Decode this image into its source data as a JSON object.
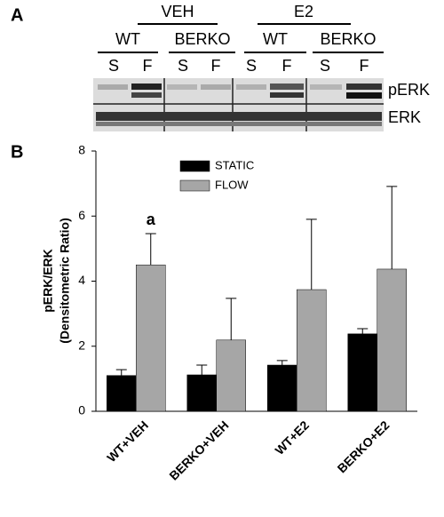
{
  "panel_a": {
    "label": "A",
    "treatments": [
      "VEH",
      "E2"
    ],
    "genotypes": [
      "WT",
      "BERKO",
      "WT",
      "BERKO"
    ],
    "lanes": [
      "S",
      "F",
      "S",
      "F",
      "S",
      "F",
      "S",
      "F"
    ],
    "bands": [
      "pERK",
      "ERK"
    ]
  },
  "chart_data": {
    "type": "bar",
    "panel_label": "B",
    "ylabel": [
      "pERK/ERK",
      "(Densitometric Ratio)"
    ],
    "categories": [
      "WT+VEH",
      "BERKO+VEH",
      "WT+E2",
      "BERKO+E2"
    ],
    "series": [
      {
        "name": "STATIC",
        "color": "#000000",
        "values": [
          1.1,
          1.12,
          1.42,
          2.38
        ],
        "errors": [
          0.18,
          0.3,
          0.14,
          0.16
        ]
      },
      {
        "name": "FLOW",
        "color": "#a6a6a6",
        "values": [
          4.5,
          2.19,
          3.74,
          4.37
        ],
        "errors": [
          0.96,
          1.28,
          2.16,
          2.54
        ]
      }
    ],
    "annotation": "a",
    "ylim": [
      0,
      8
    ],
    "yticks": [
      0,
      2,
      4,
      6,
      8
    ]
  }
}
